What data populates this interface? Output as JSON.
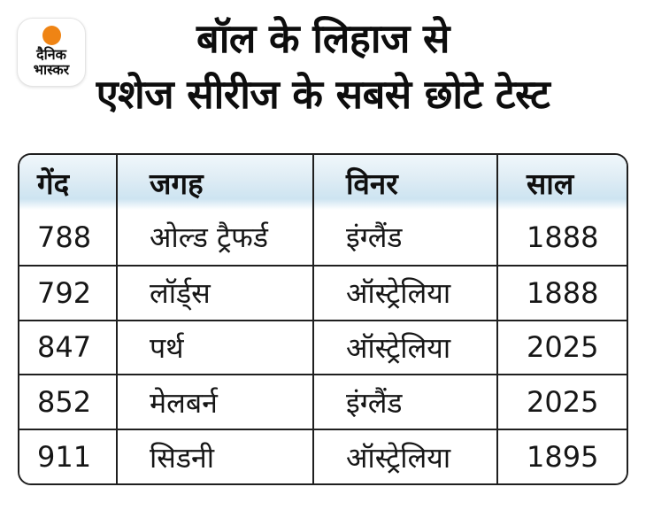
{
  "brand": {
    "name_line1": "दैनिक",
    "name_line2": "भास्कर"
  },
  "title": {
    "line1": "बॉल के लिहाज से",
    "line2": "एशेज सीरीज के सबसे छोटे टेस्ट"
  },
  "table": {
    "headers": {
      "balls": "गेंद",
      "place": "जगह",
      "winner": "विनर",
      "year": "साल"
    },
    "rows": [
      {
        "balls": "788",
        "place": "ओल्ड ट्रैफर्ड",
        "winner": "इंग्लैंड",
        "year": "1888"
      },
      {
        "balls": "792",
        "place": "लॉर्ड्स",
        "winner": "ऑस्ट्रेलिया",
        "year": "1888"
      },
      {
        "balls": "847",
        "place": "पर्थ",
        "winner": "ऑस्ट्रेलिया",
        "year": "2025"
      },
      {
        "balls": "852",
        "place": "मेलबर्न",
        "winner": "इंग्लैंड",
        "year": "2025"
      },
      {
        "balls": "911",
        "place": "सिडनी",
        "winner": "ऑस्ट्रेलिया",
        "year": "1895"
      }
    ]
  },
  "colors": {
    "logo_dot": "#EF8414",
    "table_border": "#1f1f1f",
    "header_gradient_top": "#f0f7fb",
    "header_gradient_bottom": "#cde4f1",
    "title_text": "#0d0d0d"
  },
  "chart_data": {
    "type": "table",
    "title": "बॉल के लिहाज से एशेज सीरीज के सबसे छोटे टेस्ट",
    "columns": [
      "गेंद",
      "जगह",
      "विनर",
      "साल"
    ],
    "rows": [
      [
        788,
        "ओल्ड ट्रैफर्ड",
        "इंग्लैंड",
        1888
      ],
      [
        792,
        "लॉर्ड्स",
        "ऑस्ट्रेलिया",
        1888
      ],
      [
        847,
        "पर्थ",
        "ऑस्ट्रेलिया",
        2025
      ],
      [
        852,
        "मेलबर्न",
        "इंग्लैंड",
        2025
      ],
      [
        911,
        "सिडनी",
        "ऑस्ट्रेलिया",
        1895
      ]
    ],
    "legend_position": "none",
    "grid": true
  }
}
